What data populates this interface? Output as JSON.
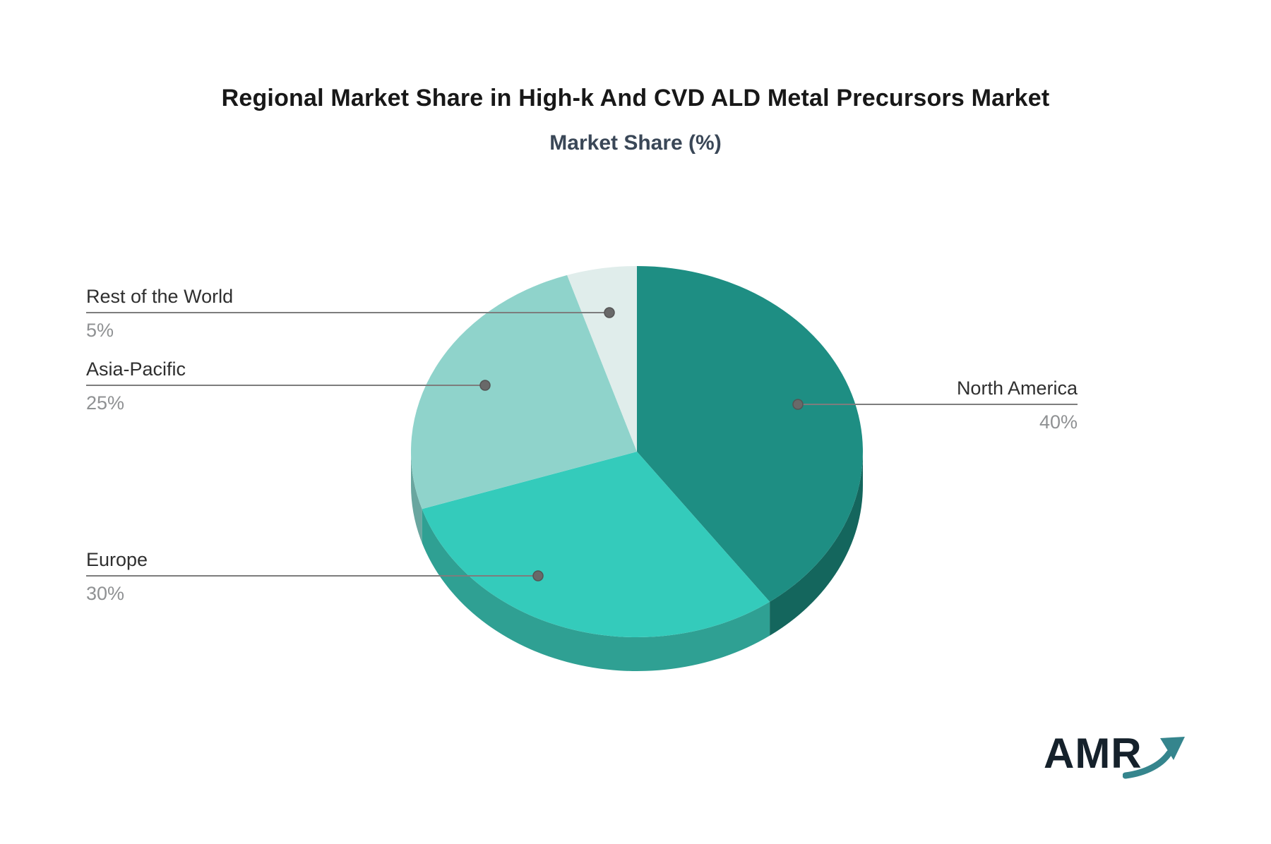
{
  "title": "Regional Market Share in High-k And CVD ALD Metal Precursors Market",
  "subtitle": "Market Share (%)",
  "chart_data": {
    "type": "pie",
    "style": "3d",
    "title": "Regional Market Share in High-k And CVD ALD Metal Precursors Market",
    "subtitle": "Market Share (%)",
    "unit": "%",
    "start_angle": "12-oclock",
    "direction": "clockwise",
    "legend_position": "none",
    "label_style": "leader-lines",
    "leader_line_color": "#7d7d7d",
    "label_text_color": "#2f2f2f",
    "percent_text_color": "#8f9193",
    "slices": [
      {
        "label": "North America",
        "value": 40,
        "color": "#1e8e83",
        "side_color": "#14665d"
      },
      {
        "label": "Europe",
        "value": 30,
        "color": "#34cbbb",
        "side_color": "#2fa093"
      },
      {
        "label": "Asia-Pacific",
        "value": 25,
        "color": "#8fd3cb",
        "side_color": "#69a69f"
      },
      {
        "label": "Rest of the World",
        "value": 5,
        "color": "#e0edeb",
        "side_color": "#bcd8d4"
      }
    ]
  },
  "logo": {
    "text": "AMR",
    "arrow_color": "#35858d",
    "text_color": "#15212b"
  }
}
